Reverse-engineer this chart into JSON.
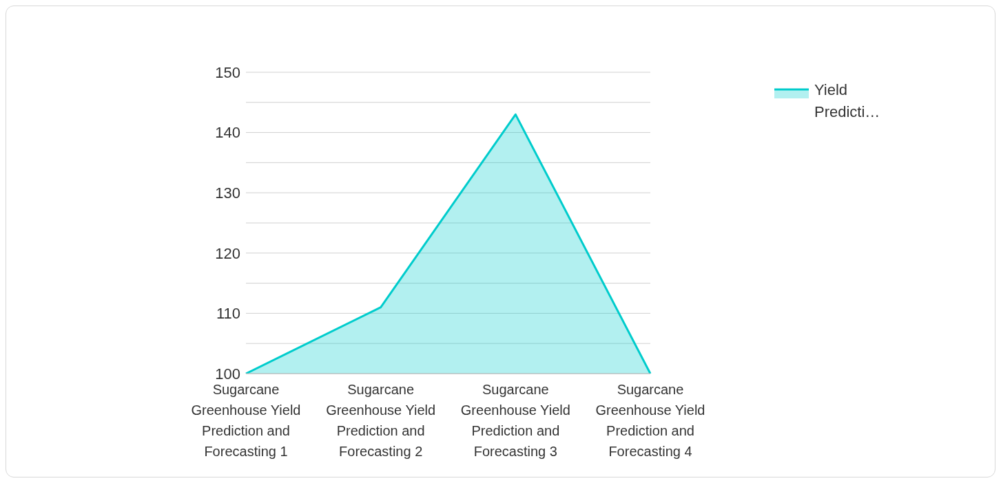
{
  "chart_data": {
    "type": "area",
    "categories": [
      "Sugarcane Greenhouse Yield Prediction and Forecasting 1",
      "Sugarcane Greenhouse Yield Prediction and Forecasting 2",
      "Sugarcane Greenhouse Yield Prediction and Forecasting 3",
      "Sugarcane Greenhouse Yield Prediction and Forecasting 4"
    ],
    "series": [
      {
        "name": "Yield Predicti…",
        "color": "#00cccc",
        "values": [
          100,
          111,
          143,
          100
        ]
      }
    ],
    "ylim": [
      100,
      150
    ],
    "yticks": [
      100,
      {
        "value": 105,
        "label": null
      },
      110,
      {
        "value": 115,
        "label": null
      },
      120,
      {
        "value": 125,
        "label": null
      },
      130,
      {
        "value": 135,
        "label": null
      },
      140,
      {
        "value": 145,
        "label": null
      },
      150
    ],
    "grid": "y",
    "legend": "top right"
  }
}
